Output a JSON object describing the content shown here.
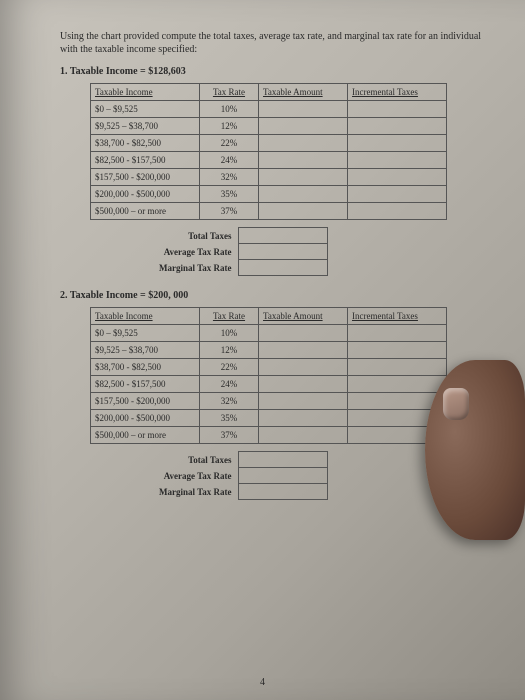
{
  "intro": "Using the chart provided compute the total taxes, average tax rate, and marginal tax rate for an individual with the taxable income specified:",
  "headers": {
    "c1": "Taxable Income",
    "c2": "Tax Rate",
    "c3": "Taxable Amount",
    "c4": "Incremental Taxes"
  },
  "brackets": [
    {
      "range": "$0 – $9,525",
      "rate": "10%"
    },
    {
      "range": "$9,525 – $38,700",
      "rate": "12%"
    },
    {
      "range": "$38,700 - $82,500",
      "rate": "22%"
    },
    {
      "range": "$82,500 - $157,500",
      "rate": "24%"
    },
    {
      "range": "$157,500 - $200,000",
      "rate": "32%"
    },
    {
      "range": "$200,000 - $500,000",
      "rate": "35%"
    },
    {
      "range": "$500,000 – or more",
      "rate": "37%"
    }
  ],
  "summary": {
    "total": "Total Taxes",
    "avg": "Average Tax Rate",
    "marg": "Marginal Tax Rate"
  },
  "q1": {
    "heading": "1. Taxable Income = $128,603"
  },
  "q2": {
    "heading": "2. Taxable Income = $200, 000"
  },
  "pagenum": "4"
}
